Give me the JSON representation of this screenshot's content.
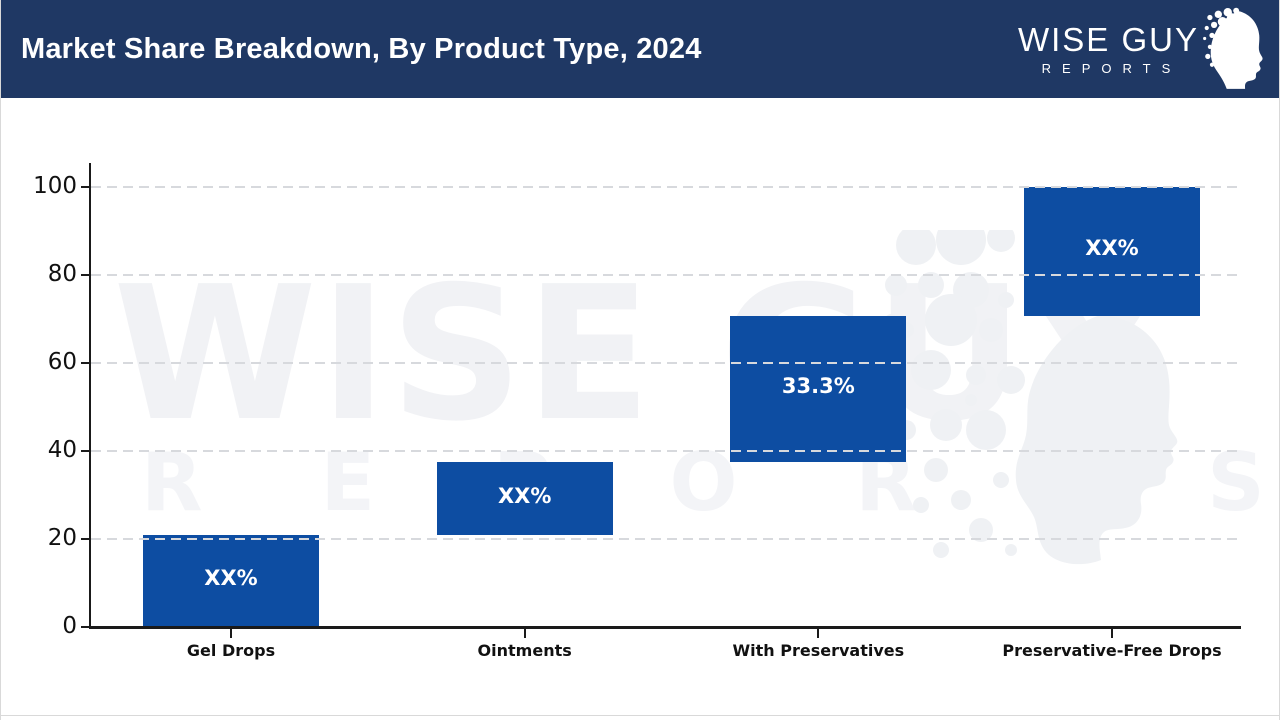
{
  "header": {
    "title": "Market Share Breakdown, By Product Type, 2024",
    "logo": {
      "line1": "WISE GUY",
      "line2": "REPORTS"
    }
  },
  "watermark": {
    "line1": "WISE GUY",
    "line2": "R E P O R T S"
  },
  "chart_data": {
    "type": "bar",
    "subtype": "waterfall-floating-bars",
    "title": "Market Share Breakdown, By Product Type, 2024",
    "categories": [
      "Gel Drops",
      "Ointments",
      "With Preservatives",
      "Preservative-Free Drops"
    ],
    "segments": [
      {
        "category": "Gel Drops",
        "start": 0,
        "end": 21,
        "increment": 21,
        "label": "XX%"
      },
      {
        "category": "Ointments",
        "start": 21,
        "end": 37.4,
        "increment": 16.4,
        "label": "XX%"
      },
      {
        "category": "With Preservatives",
        "start": 37.4,
        "end": 70.7,
        "increment": 33.3,
        "label": "33.3%"
      },
      {
        "category": "Preservative-Free Drops",
        "start": 70.7,
        "end": 100,
        "increment": 29.3,
        "label": "XX%"
      }
    ],
    "xlabel": "",
    "ylabel": "",
    "ylim": [
      0,
      100
    ],
    "yticks": [
      0,
      20,
      40,
      60,
      80,
      100
    ],
    "grid": "horizontal-dashed",
    "legend": "none",
    "bar_color": "#0d4da2",
    "bar_label_color": "#ffffff"
  },
  "colors": {
    "header_bg": "#1f3864",
    "bar": "#0d4da2",
    "axis": "#1a1a1a",
    "grid": "#d7d9dd",
    "watermark": "#f1f2f5"
  }
}
